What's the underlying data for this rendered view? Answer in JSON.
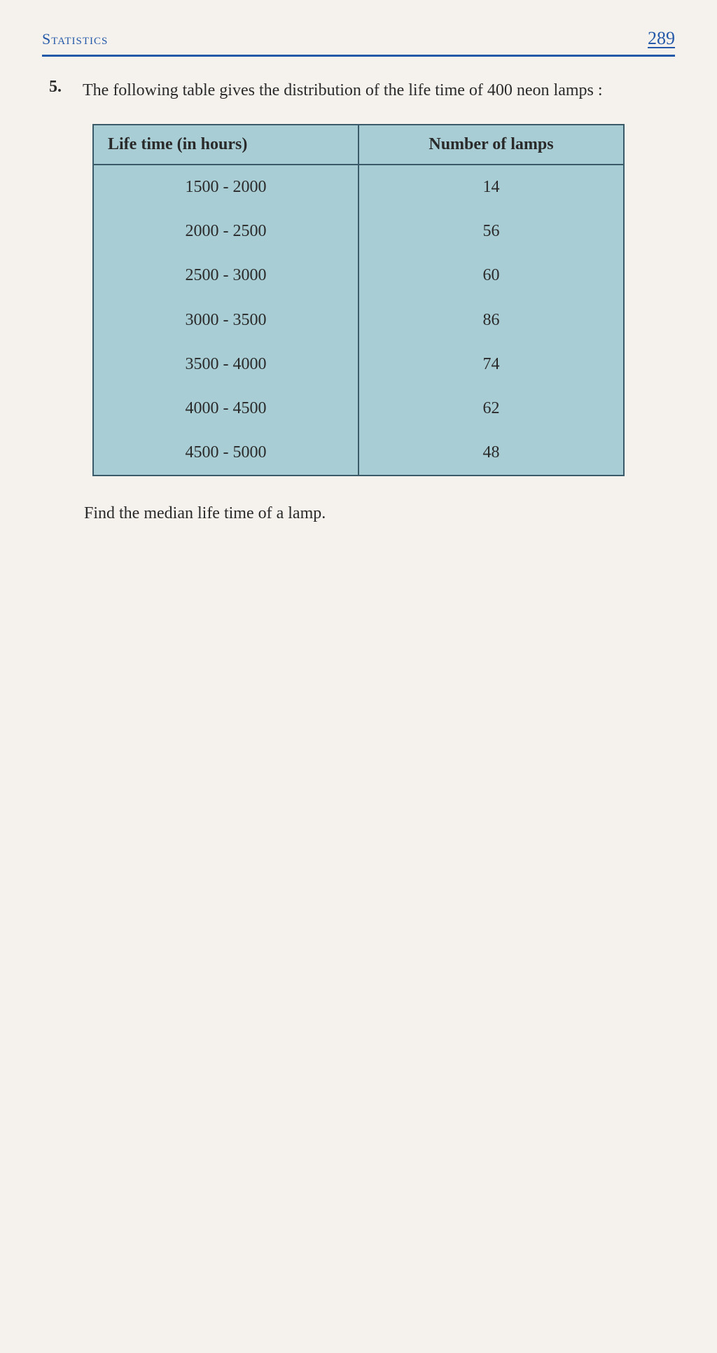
{
  "header": {
    "section_title": "Statistics",
    "page_number": "289"
  },
  "question": {
    "number": "5.",
    "text": "The following table gives the distribution of the life time of 400 neon lamps :"
  },
  "table": {
    "type": "table",
    "background_color": "#a8cdd4",
    "border_color": "#3a5a6a",
    "header_fontsize": 24,
    "cell_fontsize": 24,
    "columns": [
      "Life time (in hours)",
      "Number of lamps"
    ],
    "rows": [
      [
        "1500 - 2000",
        "14"
      ],
      [
        "2000 - 2500",
        "56"
      ],
      [
        "2500 - 3000",
        "60"
      ],
      [
        "3000 - 3500",
        "86"
      ],
      [
        "3500 - 4000",
        "74"
      ],
      [
        "4000 - 4500",
        "62"
      ],
      [
        "4500 - 5000",
        "48"
      ]
    ]
  },
  "instruction": "Find the median life time of a lamp."
}
